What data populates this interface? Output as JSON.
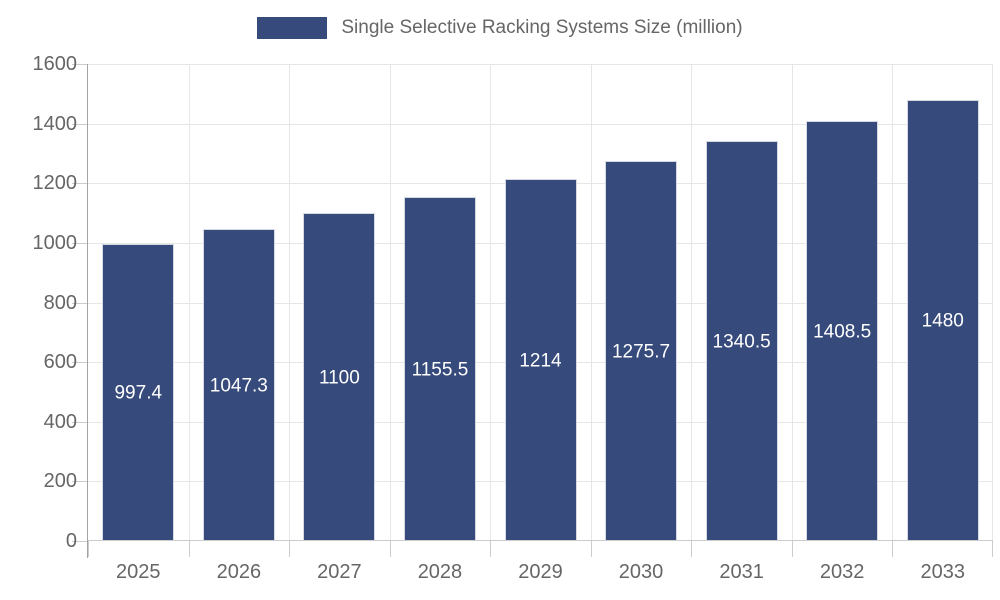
{
  "colors": {
    "bar": "#364a7c",
    "bar_border": "#d6d9e2",
    "grid": "#e6e6e6",
    "axis_line": "#a3a3a3",
    "x_axis_line": "#cccccc",
    "tick": "#cccccc",
    "text": "#666666",
    "value_label": "#ffffff",
    "background": "#ffffff"
  },
  "chart_data": {
    "type": "bar",
    "title": "",
    "legend": "Single Selective Racking Systems Size (million)",
    "legend_position": "top",
    "grid": true,
    "categories": [
      "2025",
      "2026",
      "2027",
      "2028",
      "2029",
      "2030",
      "2031",
      "2032",
      "2033"
    ],
    "values": [
      997.4,
      1047.3,
      1100,
      1155.5,
      1214,
      1275.7,
      1340.5,
      1408.5,
      1480
    ],
    "value_labels": [
      "997.4",
      "1047.3",
      "1100",
      "1155.5",
      "1214",
      "1275.7",
      "1340.5",
      "1408.5",
      "1480"
    ],
    "xlabel": "",
    "ylabel": "",
    "ylim": [
      0,
      1600
    ],
    "yticks": [
      0,
      200,
      400,
      600,
      800,
      1000,
      1200,
      1400,
      1600
    ]
  }
}
